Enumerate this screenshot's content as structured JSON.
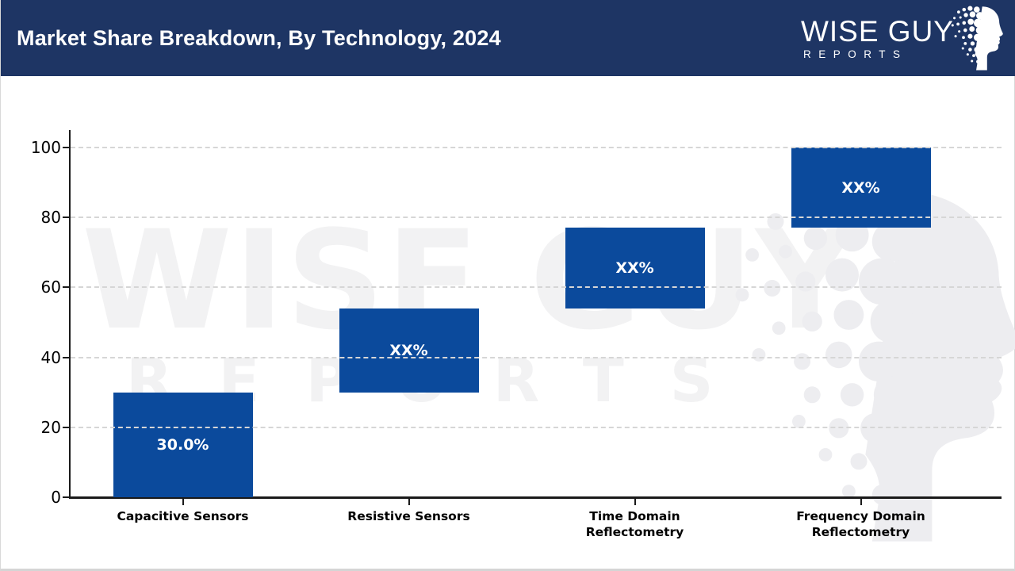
{
  "header": {
    "title": "Market Share Breakdown, By Technology, 2024",
    "background_color": "#1e3564",
    "logo": {
      "line1": "WISE GUY",
      "line2": "REPORTS"
    }
  },
  "watermark": {
    "line1": "WISE GUY",
    "line2": "REPORTS"
  },
  "chart_data": {
    "type": "bar",
    "subtype": "waterfall",
    "title": "Market Share Breakdown, By Technology, 2024",
    "categories": [
      "Capacitive Sensors",
      "Resistive Sensors",
      "Time Domain\nReflectometry",
      "Frequency Domain\nReflectometry"
    ],
    "segments": [
      {
        "category": "Capacitive Sensors",
        "start": 0,
        "end": 30,
        "label": "30.0%"
      },
      {
        "category": "Resistive Sensors",
        "start": 30,
        "end": 54,
        "label": "XX%"
      },
      {
        "category": "Time Domain Reflectometry",
        "start": 54,
        "end": 77,
        "label": "XX%"
      },
      {
        "category": "Frequency Domain Reflectometry",
        "start": 77,
        "end": 100,
        "label": "XX%"
      }
    ],
    "yticks": [
      0,
      20,
      40,
      60,
      80,
      100
    ],
    "ylim": [
      0,
      105
    ],
    "xlabel": "",
    "ylabel": "",
    "grid": "horizontal-dashed",
    "grid_on_top": true,
    "legend": "none",
    "bar_color": "#0b4a9c",
    "bar_label_color": "#ffffff",
    "axis_color": "#1a1a1a",
    "grid_color": "#d6d6d6"
  }
}
